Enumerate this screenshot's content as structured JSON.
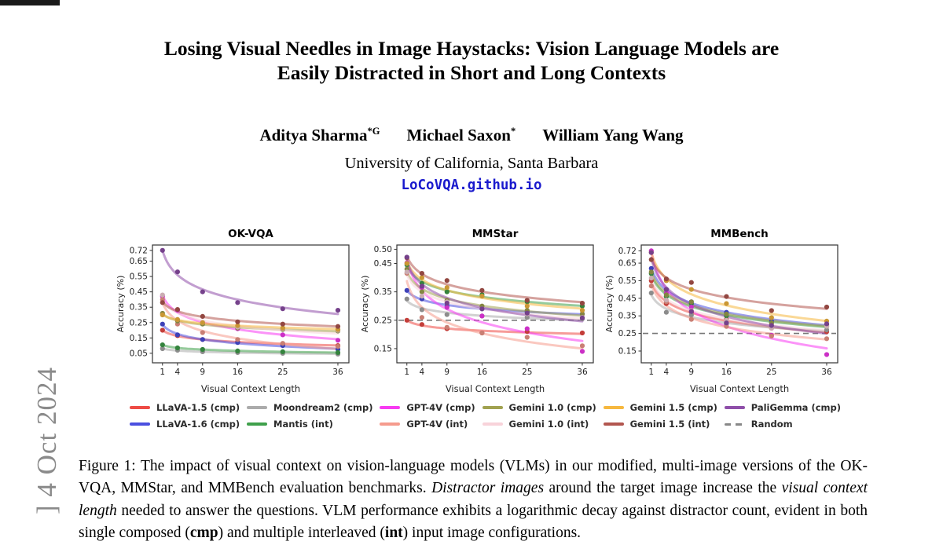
{
  "page": {
    "arxiv_stamp": "] 4 Oct 2024"
  },
  "paper": {
    "title": "Losing Visual Needles in Image Haystacks: Vision Language Models are Easily Distracted in Short and Long Contexts",
    "title_line1": "Losing Visual Needles in Image Haystacks: Vision Language Models are",
    "title_line2": "Easily Distracted in Short and Long Contexts",
    "authors": [
      {
        "name": "Aditya Sharma",
        "sup": "*G"
      },
      {
        "name": "Michael Saxon",
        "sup": "*"
      },
      {
        "name": "William Yang Wang",
        "sup": ""
      }
    ],
    "affiliation": "University of California, Santa Barbara",
    "link": "LoCoVQA.github.io",
    "link_color": "#1a1acd"
  },
  "figure": {
    "caption_segments": [
      {
        "text": "Figure 1: The impact of visual context on vision-language models (VLMs) in our modified, multi-image versions of the OK-VQA, MMStar, and MMBench evaluation benchmarks. ",
        "style": "plain"
      },
      {
        "text": "Distractor images",
        "style": "italic"
      },
      {
        "text": " around the target image increase the ",
        "style": "plain"
      },
      {
        "text": "visual context length",
        "style": "italic"
      },
      {
        "text": " needed to answer the questions. VLM performance exhibits a logarithmic decay against distractor count, evident in both single composed (",
        "style": "plain"
      },
      {
        "text": "cmp",
        "style": "bold"
      },
      {
        "text": ") and multiple interleaved (",
        "style": "plain"
      },
      {
        "text": "int",
        "style": "bold"
      },
      {
        "text": ") input image configurations.",
        "style": "plain"
      }
    ]
  },
  "legend": {
    "columns": [
      [
        {
          "label": "LLaVA-1.5 (cmp)",
          "color": "#ee4b45"
        },
        {
          "label": "LLaVA-1.6 (cmp)",
          "color": "#4a4fe0"
        }
      ],
      [
        {
          "label": "Moondream2 (cmp)",
          "color": "#ababab"
        },
        {
          "label": "Mantis (int)",
          "color": "#3fa04b"
        }
      ],
      [
        {
          "label": "GPT-4V (cmp)",
          "color": "#f73bf2"
        },
        {
          "label": "GPT-4V (int)",
          "color": "#f59b8d"
        }
      ],
      [
        {
          "label": "Gemini 1.0 (cmp)",
          "color": "#a1a250"
        },
        {
          "label": "Gemini 1.0 (int)",
          "color": "#f8d3da"
        }
      ],
      [
        {
          "label": "Gemini 1.5 (cmp)",
          "color": "#f6b83f"
        },
        {
          "label": "Gemini 1.5 (int)",
          "color": "#b2564f"
        }
      ],
      [
        {
          "label": "PaliGemma (cmp)",
          "color": "#8f4fa9"
        },
        {
          "label": "Random",
          "color": "#888888",
          "dashed": true
        }
      ]
    ]
  },
  "chart_data": [
    {
      "type": "line",
      "title": "OK-VQA",
      "xlabel": "Visual Context Length",
      "ylabel": "Accuracy (%)",
      "x": [
        1,
        4,
        9,
        16,
        25,
        36
      ],
      "xticks": [
        1,
        4,
        9,
        16,
        25,
        36
      ],
      "yticks": [
        0.05,
        0.15,
        0.25,
        0.35,
        0.45,
        0.55,
        0.65,
        0.72
      ],
      "xlim": [
        -1,
        38.2
      ],
      "ylim": [
        -0.012,
        0.755
      ],
      "random_baseline": null,
      "series": [
        {
          "name": "LLaVA-1.5 (cmp)",
          "color": "#ee4b45",
          "values": [
            0.2,
            0.165,
            0.14,
            0.125,
            0.11,
            0.1
          ]
        },
        {
          "name": "LLaVA-1.6 (cmp)",
          "color": "#4a4fe0",
          "values": [
            0.24,
            0.17,
            0.14,
            0.12,
            0.1,
            0.075
          ]
        },
        {
          "name": "Moondream2 (cmp)",
          "color": "#ababab",
          "values": [
            0.08,
            0.07,
            0.06,
            0.055,
            0.05,
            0.045
          ]
        },
        {
          "name": "Mantis (int)",
          "color": "#3fa04b",
          "values": [
            0.105,
            0.085,
            0.075,
            0.065,
            0.06,
            0.055
          ]
        },
        {
          "name": "GPT-4V (cmp)",
          "color": "#f73bf2",
          "values": [
            0.42,
            0.33,
            0.25,
            0.21,
            0.17,
            0.135
          ]
        },
        {
          "name": "GPT-4V (int)",
          "color": "#f59b8d",
          "values": [
            0.4,
            0.24,
            0.185,
            0.14,
            0.115,
            0.095
          ]
        },
        {
          "name": "Gemini 1.0 (cmp)",
          "color": "#a1a250",
          "values": [
            0.31,
            0.26,
            0.24,
            0.215,
            0.205,
            0.195
          ]
        },
        {
          "name": "Gemini 1.0 (int)",
          "color": "#f8d3da",
          "values": [
            0.43,
            0.27,
            0.25,
            0.22,
            0.21,
            0.2
          ]
        },
        {
          "name": "Gemini 1.5 (cmp)",
          "color": "#f6b83f",
          "values": [
            0.3,
            0.27,
            0.25,
            0.23,
            0.215,
            0.205
          ]
        },
        {
          "name": "Gemini 1.5 (int)",
          "color": "#b2564f",
          "values": [
            0.38,
            0.335,
            0.29,
            0.255,
            0.24,
            0.225
          ]
        },
        {
          "name": "PaliGemma (cmp)",
          "color": "#8f4fa9",
          "values": [
            0.72,
            0.58,
            0.45,
            0.38,
            0.34,
            0.33
          ]
        }
      ]
    },
    {
      "type": "line",
      "title": "MMStar",
      "xlabel": "Visual Context Length",
      "ylabel": "Accuracy (%)",
      "x": [
        1,
        4,
        9,
        16,
        25,
        36
      ],
      "xticks": [
        1,
        4,
        9,
        16,
        25,
        36
      ],
      "yticks": [
        0.15,
        0.25,
        0.35,
        0.45,
        0.5
      ],
      "xlim": [
        -1,
        38.2
      ],
      "ylim": [
        0.1,
        0.515
      ],
      "random_baseline": 0.25,
      "series": [
        {
          "name": "LLaVA-1.5 (cmp)",
          "color": "#ee4b45",
          "values": [
            0.25,
            0.235,
            0.22,
            0.205,
            0.21,
            0.205
          ]
        },
        {
          "name": "LLaVA-1.6 (cmp)",
          "color": "#4a4fe0",
          "values": [
            0.355,
            0.325,
            0.3,
            0.29,
            0.28,
            0.272
          ]
        },
        {
          "name": "Moondream2 (cmp)",
          "color": "#ababab",
          "values": [
            0.325,
            0.287,
            0.27,
            0.265,
            0.26,
            0.255
          ]
        },
        {
          "name": "Mantis (int)",
          "color": "#3fa04b",
          "values": [
            0.445,
            0.38,
            0.35,
            0.34,
            0.315,
            0.3
          ]
        },
        {
          "name": "GPT-4V (cmp)",
          "color": "#f73bf2",
          "values": [
            0.452,
            0.365,
            0.295,
            0.265,
            0.22,
            0.14
          ]
        },
        {
          "name": "GPT-4V (int)",
          "color": "#f59b8d",
          "values": [
            0.415,
            0.26,
            0.225,
            0.205,
            0.19,
            0.16
          ]
        },
        {
          "name": "Gemini 1.0 (cmp)",
          "color": "#a1a250",
          "values": [
            0.43,
            0.35,
            0.32,
            0.3,
            0.285,
            0.272
          ]
        },
        {
          "name": "Gemini 1.0 (int)",
          "color": "#f8d3da",
          "values": [
            0.42,
            0.335,
            0.315,
            0.29,
            0.272,
            0.26
          ]
        },
        {
          "name": "Gemini 1.5 (cmp)",
          "color": "#f6b83f",
          "values": [
            0.45,
            0.4,
            0.365,
            0.335,
            0.3,
            0.285
          ]
        },
        {
          "name": "Gemini 1.5 (int)",
          "color": "#b2564f",
          "values": [
            0.47,
            0.415,
            0.39,
            0.355,
            0.32,
            0.31
          ]
        },
        {
          "name": "PaliGemma (cmp)",
          "color": "#8f4fa9",
          "values": [
            0.472,
            0.37,
            0.31,
            0.29,
            0.275,
            0.258
          ]
        }
      ]
    },
    {
      "type": "line",
      "title": "MMBench",
      "xlabel": "Visual Context Length",
      "ylabel": "Accuracy (%)",
      "x": [
        1,
        4,
        9,
        16,
        25,
        36
      ],
      "xticks": [
        1,
        4,
        9,
        16,
        25,
        36
      ],
      "yticks": [
        0.15,
        0.25,
        0.35,
        0.45,
        0.55,
        0.65,
        0.72
      ],
      "xlim": [
        -1,
        38.2
      ],
      "ylim": [
        0.083,
        0.753
      ],
      "random_baseline": 0.25,
      "series": [
        {
          "name": "LLaVA-1.5 (cmp)",
          "color": "#ee4b45",
          "values": [
            0.55,
            0.42,
            0.37,
            0.33,
            0.28,
            0.26
          ]
        },
        {
          "name": "LLaVA-1.6 (cmp)",
          "color": "#4a4fe0",
          "values": [
            0.62,
            0.5,
            0.43,
            0.37,
            0.32,
            0.3
          ]
        },
        {
          "name": "Moondream2 (cmp)",
          "color": "#ababab",
          "values": [
            0.48,
            0.37,
            0.355,
            0.3,
            0.285,
            0.27
          ]
        },
        {
          "name": "Mantis (int)",
          "color": "#3fa04b",
          "values": [
            0.59,
            0.46,
            0.42,
            0.35,
            0.31,
            0.29
          ]
        },
        {
          "name": "GPT-4V (cmp)",
          "color": "#f73bf2",
          "values": [
            0.72,
            0.48,
            0.4,
            0.31,
            0.24,
            0.13
          ]
        },
        {
          "name": "GPT-4V (int)",
          "color": "#f59b8d",
          "values": [
            0.52,
            0.43,
            0.33,
            0.29,
            0.235,
            0.22
          ]
        },
        {
          "name": "Gemini 1.0 (cmp)",
          "color": "#a1a250",
          "values": [
            0.6,
            0.47,
            0.43,
            0.36,
            0.31,
            0.295
          ]
        },
        {
          "name": "Gemini 1.0 (int)",
          "color": "#f8d3da",
          "values": [
            0.565,
            0.44,
            0.38,
            0.325,
            0.28,
            0.29
          ]
        },
        {
          "name": "Gemini 1.5 (cmp)",
          "color": "#f6b83f",
          "values": [
            0.71,
            0.55,
            0.5,
            0.42,
            0.34,
            0.32
          ]
        },
        {
          "name": "Gemini 1.5 (int)",
          "color": "#b2564f",
          "values": [
            0.67,
            0.56,
            0.54,
            0.46,
            0.38,
            0.4
          ]
        },
        {
          "name": "PaliGemma (cmp)",
          "color": "#8f4fa9",
          "values": [
            0.71,
            0.5,
            0.375,
            0.31,
            0.295,
            0.305
          ]
        }
      ]
    }
  ]
}
